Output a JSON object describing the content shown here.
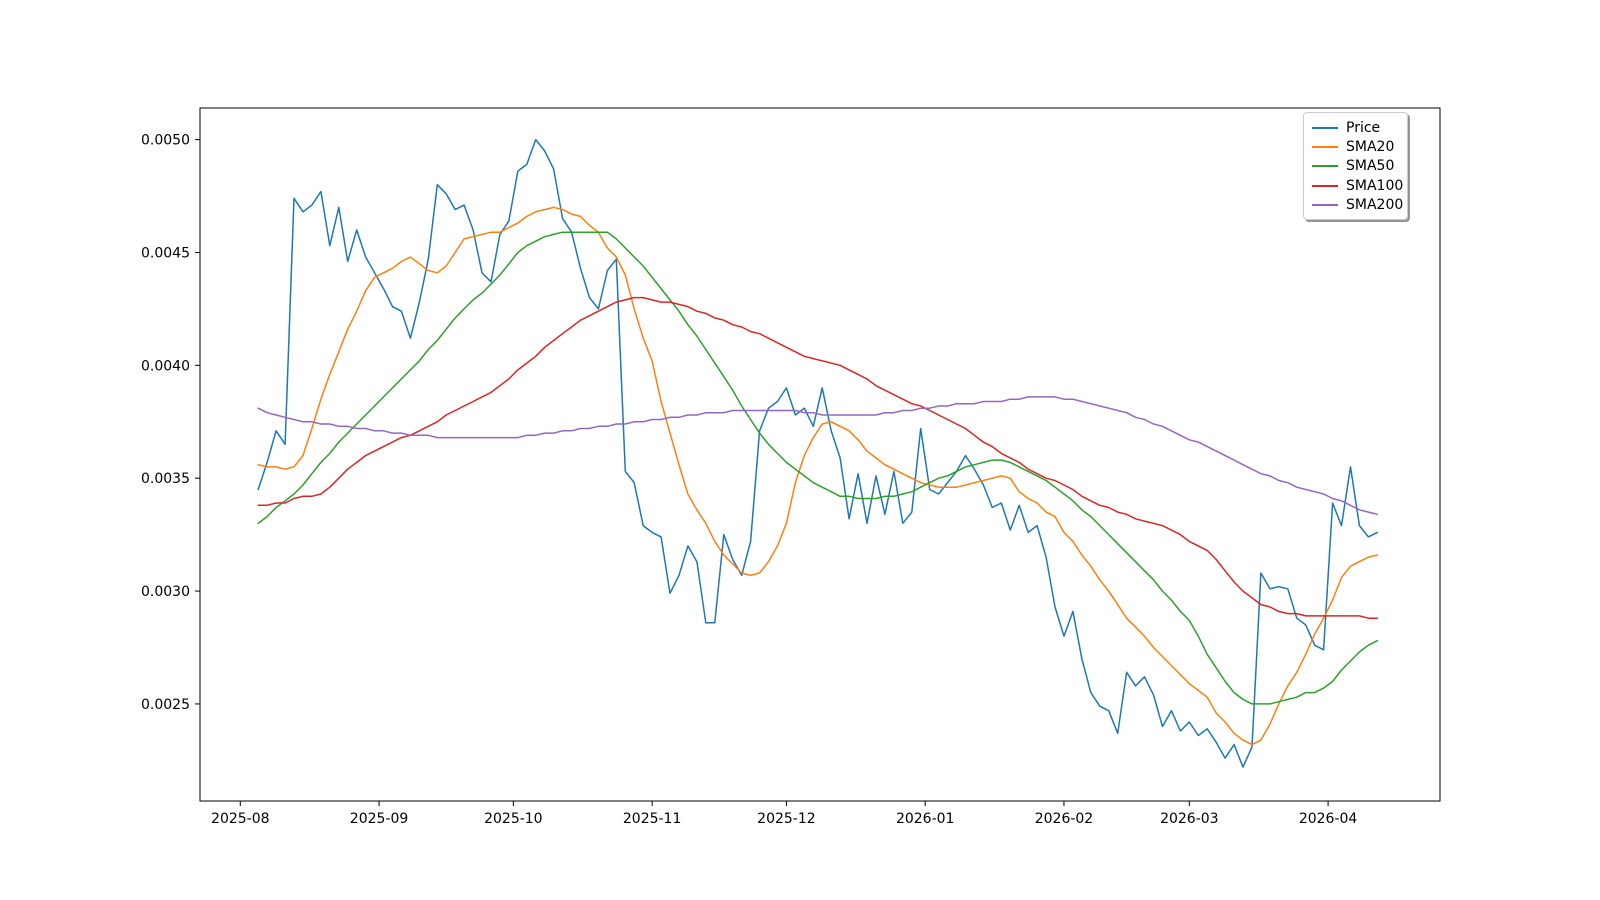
{
  "figure": {
    "background": "#ffffff"
  },
  "chart_data": {
    "type": "line",
    "title": "",
    "xlabel": "",
    "ylabel": "",
    "grid": false,
    "legend": {
      "position": "upper-right",
      "entries": [
        "Price",
        "SMA20",
        "SMA50",
        "SMA100",
        "SMA200"
      ]
    },
    "xlim": [
      "2025-07-23",
      "2026-04-26"
    ],
    "ylim": [
      0.00207,
      0.00514
    ],
    "x_ticks": [
      {
        "date": "2025-08-01",
        "label": "2025-08"
      },
      {
        "date": "2025-09-01",
        "label": "2025-09"
      },
      {
        "date": "2025-10-01",
        "label": "2025-10"
      },
      {
        "date": "2025-11-01",
        "label": "2025-11"
      },
      {
        "date": "2025-12-01",
        "label": "2025-12"
      },
      {
        "date": "2026-01-01",
        "label": "2026-01"
      },
      {
        "date": "2026-02-01",
        "label": "2026-02"
      },
      {
        "date": "2026-03-01",
        "label": "2026-03"
      },
      {
        "date": "2026-04-01",
        "label": "2026-04"
      }
    ],
    "y_ticks": [
      {
        "value": 0.0025,
        "label": "0.0025"
      },
      {
        "value": 0.003,
        "label": "0.0030"
      },
      {
        "value": 0.0035,
        "label": "0.0035"
      },
      {
        "value": 0.004,
        "label": "0.0040"
      },
      {
        "value": 0.0045,
        "label": "0.0045"
      },
      {
        "value": 0.005,
        "label": "0.0050"
      }
    ],
    "x": [
      "2025-08-05",
      "2025-08-07",
      "2025-08-09",
      "2025-08-11",
      "2025-08-13",
      "2025-08-15",
      "2025-08-17",
      "2025-08-19",
      "2025-08-21",
      "2025-08-23",
      "2025-08-25",
      "2025-08-27",
      "2025-08-29",
      "2025-08-31",
      "2025-09-02",
      "2025-09-04",
      "2025-09-06",
      "2025-09-08",
      "2025-09-10",
      "2025-09-12",
      "2025-09-14",
      "2025-09-16",
      "2025-09-18",
      "2025-09-20",
      "2025-09-22",
      "2025-09-24",
      "2025-09-26",
      "2025-09-28",
      "2025-09-30",
      "2025-10-02",
      "2025-10-04",
      "2025-10-06",
      "2025-10-08",
      "2025-10-10",
      "2025-10-12",
      "2025-10-14",
      "2025-10-16",
      "2025-10-18",
      "2025-10-20",
      "2025-10-22",
      "2025-10-24",
      "2025-10-26",
      "2025-10-28",
      "2025-10-30",
      "2025-11-01",
      "2025-11-03",
      "2025-11-05",
      "2025-11-07",
      "2025-11-09",
      "2025-11-11",
      "2025-11-13",
      "2025-11-15",
      "2025-11-17",
      "2025-11-19",
      "2025-11-21",
      "2025-11-23",
      "2025-11-25",
      "2025-11-27",
      "2025-11-29",
      "2025-12-01",
      "2025-12-03",
      "2025-12-05",
      "2025-12-07",
      "2025-12-09",
      "2025-12-11",
      "2025-12-13",
      "2025-12-15",
      "2025-12-17",
      "2025-12-19",
      "2025-12-21",
      "2025-12-23",
      "2025-12-25",
      "2025-12-27",
      "2025-12-29",
      "2025-12-31",
      "2026-01-02",
      "2026-01-04",
      "2026-01-06",
      "2026-01-08",
      "2026-01-10",
      "2026-01-12",
      "2026-01-14",
      "2026-01-16",
      "2026-01-18",
      "2026-01-20",
      "2026-01-22",
      "2026-01-24",
      "2026-01-26",
      "2026-01-28",
      "2026-01-30",
      "2026-02-01",
      "2026-02-03",
      "2026-02-05",
      "2026-02-07",
      "2026-02-09",
      "2026-02-11",
      "2026-02-13",
      "2026-02-15",
      "2026-02-17",
      "2026-02-19",
      "2026-02-21",
      "2026-02-23",
      "2026-02-25",
      "2026-02-27",
      "2026-03-01",
      "2026-03-03",
      "2026-03-05",
      "2026-03-07",
      "2026-03-09",
      "2026-03-11",
      "2026-03-13",
      "2026-03-15",
      "2026-03-17",
      "2026-03-19",
      "2026-03-21",
      "2026-03-23",
      "2026-03-25",
      "2026-03-27",
      "2026-03-29",
      "2026-03-31",
      "2026-04-02",
      "2026-04-04",
      "2026-04-06",
      "2026-04-08",
      "2026-04-10",
      "2026-04-12"
    ],
    "series": [
      {
        "name": "Price",
        "color": "#1f77b4",
        "values": [
          0.00345,
          0.00357,
          0.00371,
          0.00365,
          0.00474,
          0.00468,
          0.00471,
          0.00477,
          0.00453,
          0.0047,
          0.00446,
          0.0046,
          0.00448,
          0.00441,
          0.00434,
          0.00426,
          0.00424,
          0.00412,
          0.00428,
          0.00447,
          0.0048,
          0.00476,
          0.00469,
          0.00471,
          0.0046,
          0.00441,
          0.00437,
          0.00458,
          0.00464,
          0.00486,
          0.00489,
          0.005,
          0.00495,
          0.00487,
          0.00465,
          0.00459,
          0.00443,
          0.0043,
          0.00425,
          0.00442,
          0.00447,
          0.00353,
          0.00348,
          0.00329,
          0.00326,
          0.00324,
          0.00299,
          0.00307,
          0.0032,
          0.00313,
          0.00286,
          0.00286,
          0.00325,
          0.00314,
          0.00307,
          0.00322,
          0.00371,
          0.00381,
          0.00384,
          0.0039,
          0.00378,
          0.00381,
          0.00373,
          0.0039,
          0.00371,
          0.00359,
          0.00332,
          0.00352,
          0.0033,
          0.00351,
          0.00334,
          0.00353,
          0.0033,
          0.00335,
          0.00372,
          0.00345,
          0.00343,
          0.00348,
          0.00353,
          0.0036,
          0.00354,
          0.00347,
          0.00337,
          0.00339,
          0.00327,
          0.00338,
          0.00326,
          0.00329,
          0.00315,
          0.00293,
          0.0028,
          0.00291,
          0.0027,
          0.00255,
          0.00249,
          0.00247,
          0.00237,
          0.00264,
          0.00258,
          0.00262,
          0.00254,
          0.0024,
          0.00247,
          0.00238,
          0.00242,
          0.00236,
          0.00239,
          0.00233,
          0.00226,
          0.00232,
          0.00222,
          0.00231,
          0.00308,
          0.00301,
          0.00302,
          0.00301,
          0.00288,
          0.00285,
          0.00276,
          0.00274,
          0.00339,
          0.00329,
          0.00355,
          0.00329,
          0.00324,
          0.00326
        ]
      },
      {
        "name": "SMA20",
        "color": "#ff7f0e",
        "values": [
          0.00356,
          0.00355,
          0.00355,
          0.00354,
          0.00355,
          0.0036,
          0.00372,
          0.00385,
          0.00396,
          0.00406,
          0.00416,
          0.00424,
          0.00433,
          0.00439,
          0.00441,
          0.00443,
          0.00446,
          0.00448,
          0.00445,
          0.00442,
          0.00441,
          0.00444,
          0.0045,
          0.00456,
          0.00457,
          0.00458,
          0.00459,
          0.00459,
          0.00461,
          0.00463,
          0.00466,
          0.00468,
          0.00469,
          0.0047,
          0.00469,
          0.00467,
          0.00466,
          0.00462,
          0.00459,
          0.00452,
          0.00448,
          0.0044,
          0.00425,
          0.00412,
          0.00402,
          0.00384,
          0.0037,
          0.00356,
          0.00343,
          0.00336,
          0.0033,
          0.00322,
          0.00316,
          0.00312,
          0.00308,
          0.00307,
          0.00308,
          0.00313,
          0.0032,
          0.0033,
          0.00348,
          0.0036,
          0.00368,
          0.00374,
          0.00375,
          0.00373,
          0.00371,
          0.00367,
          0.00362,
          0.00359,
          0.00356,
          0.00354,
          0.00352,
          0.0035,
          0.00348,
          0.00347,
          0.00346,
          0.00346,
          0.00346,
          0.00347,
          0.00348,
          0.00349,
          0.0035,
          0.00351,
          0.0035,
          0.00344,
          0.00341,
          0.00339,
          0.00335,
          0.00333,
          0.00326,
          0.00322,
          0.00316,
          0.00311,
          0.00305,
          0.003,
          0.00294,
          0.00288,
          0.00284,
          0.0028,
          0.00275,
          0.00271,
          0.00267,
          0.00263,
          0.00259,
          0.00256,
          0.00253,
          0.00246,
          0.00242,
          0.00237,
          0.00234,
          0.00232,
          0.00234,
          0.00241,
          0.0025,
          0.00258,
          0.00264,
          0.00272,
          0.00281,
          0.00288,
          0.00296,
          0.00306,
          0.00311,
          0.00313,
          0.00315,
          0.00316
        ]
      },
      {
        "name": "SMA50",
        "color": "#2ca02c",
        "values": [
          0.0033,
          0.00333,
          0.00337,
          0.0034,
          0.00343,
          0.00347,
          0.00352,
          0.00357,
          0.00361,
          0.00366,
          0.0037,
          0.00374,
          0.00378,
          0.00382,
          0.00386,
          0.0039,
          0.00394,
          0.00398,
          0.00402,
          0.00407,
          0.00411,
          0.00416,
          0.00421,
          0.00425,
          0.00429,
          0.00432,
          0.00436,
          0.0044,
          0.00445,
          0.0045,
          0.00453,
          0.00455,
          0.00457,
          0.00458,
          0.00459,
          0.00459,
          0.00459,
          0.00459,
          0.00459,
          0.00459,
          0.00456,
          0.00452,
          0.00448,
          0.00444,
          0.00439,
          0.00434,
          0.00429,
          0.00424,
          0.00418,
          0.00413,
          0.00407,
          0.00401,
          0.00395,
          0.00389,
          0.00382,
          0.00376,
          0.0037,
          0.00365,
          0.00361,
          0.00357,
          0.00354,
          0.00351,
          0.00348,
          0.00346,
          0.00344,
          0.00342,
          0.00342,
          0.00341,
          0.00341,
          0.00341,
          0.00342,
          0.00342,
          0.00343,
          0.00344,
          0.00346,
          0.00348,
          0.0035,
          0.00351,
          0.00353,
          0.00355,
          0.00356,
          0.00357,
          0.00358,
          0.00358,
          0.00357,
          0.00355,
          0.00353,
          0.00351,
          0.00349,
          0.00346,
          0.00343,
          0.0034,
          0.00336,
          0.00333,
          0.00329,
          0.00325,
          0.00321,
          0.00317,
          0.00313,
          0.00309,
          0.00305,
          0.003,
          0.00296,
          0.00291,
          0.00287,
          0.0028,
          0.00272,
          0.00266,
          0.0026,
          0.00255,
          0.00252,
          0.0025,
          0.0025,
          0.0025,
          0.00251,
          0.00252,
          0.00253,
          0.00255,
          0.00255,
          0.00257,
          0.0026,
          0.00265,
          0.00269,
          0.00273,
          0.00276,
          0.00278
        ]
      },
      {
        "name": "SMA100",
        "color": "#d62728",
        "values": [
          0.00338,
          0.00338,
          0.00339,
          0.00339,
          0.00341,
          0.00342,
          0.00342,
          0.00343,
          0.00346,
          0.0035,
          0.00354,
          0.00357,
          0.0036,
          0.00362,
          0.00364,
          0.00366,
          0.00368,
          0.00369,
          0.00371,
          0.00373,
          0.00375,
          0.00378,
          0.0038,
          0.00382,
          0.00384,
          0.00386,
          0.00388,
          0.00391,
          0.00394,
          0.00398,
          0.00401,
          0.00404,
          0.00408,
          0.00411,
          0.00414,
          0.00417,
          0.0042,
          0.00422,
          0.00424,
          0.00426,
          0.00428,
          0.00429,
          0.0043,
          0.0043,
          0.00429,
          0.00428,
          0.00428,
          0.00427,
          0.00426,
          0.00424,
          0.00423,
          0.00421,
          0.0042,
          0.00418,
          0.00417,
          0.00415,
          0.00414,
          0.00412,
          0.0041,
          0.00408,
          0.00406,
          0.00404,
          0.00403,
          0.00402,
          0.00401,
          0.004,
          0.00398,
          0.00396,
          0.00394,
          0.00391,
          0.00389,
          0.00387,
          0.00385,
          0.00383,
          0.00382,
          0.0038,
          0.00378,
          0.00376,
          0.00374,
          0.00372,
          0.00369,
          0.00366,
          0.00364,
          0.00361,
          0.00359,
          0.00357,
          0.00354,
          0.00352,
          0.0035,
          0.00349,
          0.00347,
          0.00345,
          0.00342,
          0.0034,
          0.00338,
          0.00337,
          0.00335,
          0.00334,
          0.00332,
          0.00331,
          0.0033,
          0.00329,
          0.00327,
          0.00325,
          0.00322,
          0.0032,
          0.00318,
          0.00314,
          0.00309,
          0.00304,
          0.003,
          0.00297,
          0.00294,
          0.00293,
          0.00291,
          0.0029,
          0.0029,
          0.00289,
          0.00289,
          0.00289,
          0.00289,
          0.00289,
          0.00289,
          0.00289,
          0.00288,
          0.00288
        ]
      },
      {
        "name": "SMA200",
        "color": "#9467bd",
        "values": [
          0.00381,
          0.00379,
          0.00378,
          0.00377,
          0.00376,
          0.00375,
          0.00375,
          0.00374,
          0.00374,
          0.00373,
          0.00373,
          0.00372,
          0.00372,
          0.00371,
          0.00371,
          0.0037,
          0.0037,
          0.00369,
          0.00369,
          0.00369,
          0.00368,
          0.00368,
          0.00368,
          0.00368,
          0.00368,
          0.00368,
          0.00368,
          0.00368,
          0.00368,
          0.00368,
          0.00369,
          0.00369,
          0.0037,
          0.0037,
          0.00371,
          0.00371,
          0.00372,
          0.00372,
          0.00373,
          0.00373,
          0.00374,
          0.00374,
          0.00375,
          0.00375,
          0.00376,
          0.00376,
          0.00377,
          0.00377,
          0.00378,
          0.00378,
          0.00379,
          0.00379,
          0.00379,
          0.0038,
          0.0038,
          0.0038,
          0.0038,
          0.0038,
          0.0038,
          0.0038,
          0.0038,
          0.00379,
          0.00379,
          0.00378,
          0.00378,
          0.00378,
          0.00378,
          0.00378,
          0.00378,
          0.00378,
          0.00379,
          0.00379,
          0.0038,
          0.0038,
          0.00381,
          0.00381,
          0.00382,
          0.00382,
          0.00383,
          0.00383,
          0.00383,
          0.00384,
          0.00384,
          0.00384,
          0.00385,
          0.00385,
          0.00386,
          0.00386,
          0.00386,
          0.00386,
          0.00385,
          0.00385,
          0.00384,
          0.00383,
          0.00382,
          0.00381,
          0.0038,
          0.00379,
          0.00377,
          0.00376,
          0.00374,
          0.00373,
          0.00371,
          0.00369,
          0.00367,
          0.00366,
          0.00364,
          0.00362,
          0.0036,
          0.00358,
          0.00356,
          0.00354,
          0.00352,
          0.00351,
          0.00349,
          0.00348,
          0.00346,
          0.00345,
          0.00344,
          0.00343,
          0.00341,
          0.0034,
          0.00338,
          0.00336,
          0.00335,
          0.00334
        ]
      }
    ]
  }
}
